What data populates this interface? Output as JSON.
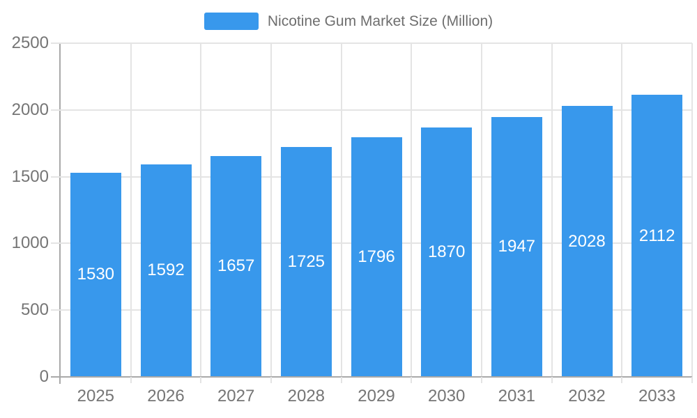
{
  "legend": {
    "label": "Nicotine Gum Market Size (Million)",
    "swatch_color": "#3898ec"
  },
  "chart_data": {
    "type": "bar",
    "title": "Nicotine Gum Market Size (Million)",
    "categories": [
      "2025",
      "2026",
      "2027",
      "2028",
      "2029",
      "2030",
      "2031",
      "2032",
      "2033"
    ],
    "values": [
      1530,
      1592,
      1657,
      1725,
      1796,
      1870,
      1947,
      2028,
      2112
    ],
    "series": [
      {
        "name": "Nicotine Gum Market Size (Million)",
        "values": [
          1530,
          1592,
          1657,
          1725,
          1796,
          1870,
          1947,
          2028,
          2112
        ]
      }
    ],
    "xlabel": "",
    "ylabel": "",
    "ylim": [
      0,
      2500
    ],
    "ytick_interval": 500,
    "yticks": [
      "2500",
      "2000",
      "1500",
      "1000",
      "500",
      "0"
    ],
    "grid": true,
    "legend_position": "top",
    "value_labels": "inside-center"
  },
  "colors": {
    "bar": "#3898ec",
    "value_label": "#ffffff",
    "axis_label": "#757575",
    "legend_text": "#6e6e6e",
    "grid_line": "#e4e4e4",
    "axis_line": "#a9a9a9",
    "background": "#ffffff"
  }
}
